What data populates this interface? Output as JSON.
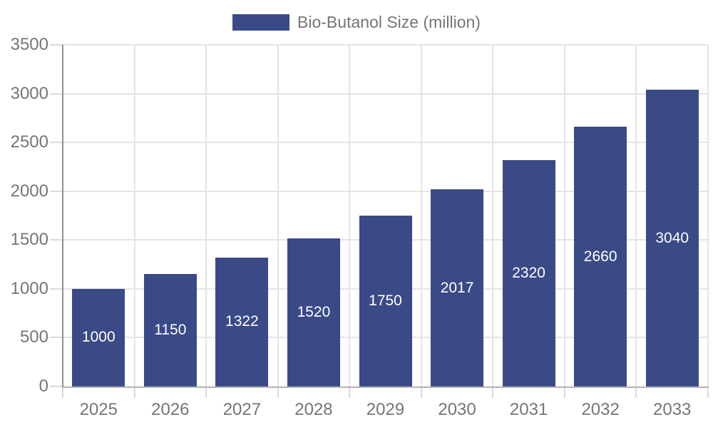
{
  "legend": {
    "label": "Bio-Butanol Size (million)"
  },
  "chart_data": {
    "type": "bar",
    "title": "",
    "categories": [
      "2025",
      "2026",
      "2027",
      "2028",
      "2029",
      "2030",
      "2031",
      "2032",
      "2033"
    ],
    "series": [
      {
        "name": "Bio-Butanol Size (million)",
        "values": [
          1000,
          1150,
          1322,
          1520,
          1750,
          2017,
          2320,
          2660,
          3040
        ]
      }
    ],
    "xlabel": "",
    "ylabel": "",
    "ylim": [
      0,
      3500
    ],
    "yticks": [
      0,
      500,
      1000,
      1500,
      2000,
      2500,
      3000,
      3500
    ],
    "grid": true,
    "legend_position": "top-center",
    "value_labels": "inside-center",
    "colors": {
      "bar": "#3A4A87",
      "value_label": "#FFFFFF",
      "axis_text": "#757575",
      "legend_text": "#757575",
      "gridline": "#E4E4E4",
      "y_axis_line": "#8F8F8F",
      "x_axis_line": "#B3B3B3",
      "tick": "#DBDBDB",
      "background": "#FFFFFF"
    }
  }
}
